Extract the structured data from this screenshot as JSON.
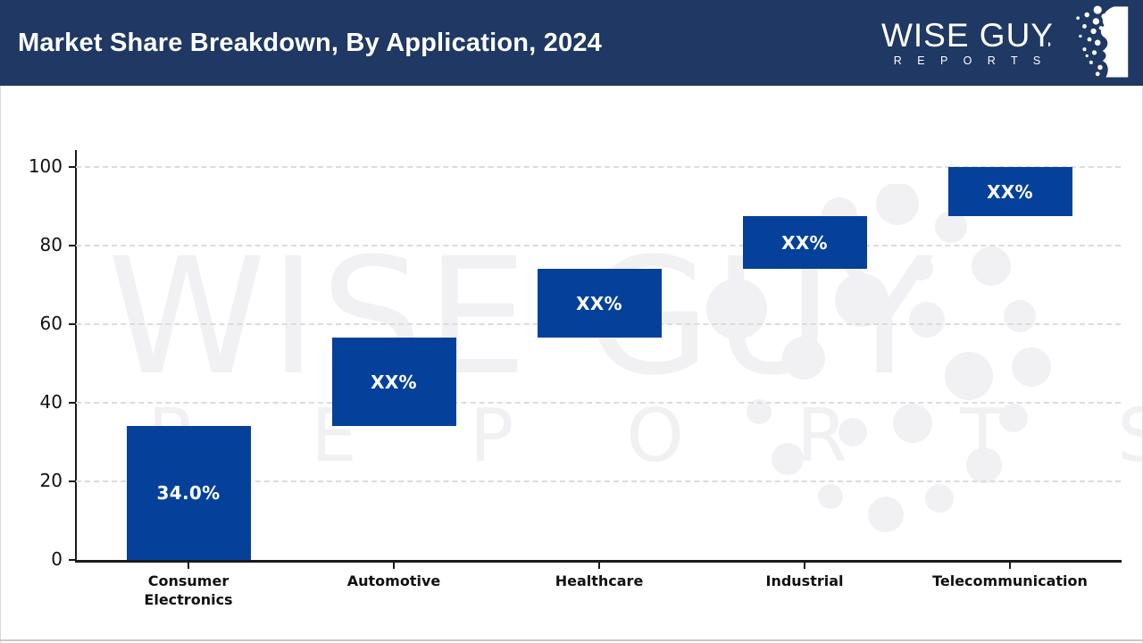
{
  "header": {
    "title": "Market Share Breakdown, By Application, 2024",
    "logo": {
      "brand_line1": "WISE GUY",
      "brand_line2": "R E P O R T S"
    }
  },
  "watermark": {
    "line1": "WISE GUY",
    "line2": "R E P O R T S"
  },
  "colors": {
    "header_bg": "#1F3864",
    "title_text": "#FFFFFF",
    "bar": "#05419B",
    "bar_label": "#FFFFFF",
    "grid": "#DCDCDC",
    "axis": "#1A1A1A",
    "watermark": "#F1F1F4",
    "bottom_rule": "#C9C9C9"
  },
  "chart_data": {
    "type": "bar",
    "subtype": "waterfall",
    "title": "Market Share Breakdown, By Application, 2024",
    "categories": [
      "Consumer Electronics",
      "Automotive",
      "Healthcare",
      "Industrial",
      "Telecommunication"
    ],
    "bars": [
      {
        "category": "Consumer Electronics",
        "start": 0,
        "end": 34,
        "label": "34.0%"
      },
      {
        "category": "Automotive",
        "start": 34,
        "end": 56.5,
        "label": "XX%"
      },
      {
        "category": "Healthcare",
        "start": 56.5,
        "end": 74,
        "label": "XX%"
      },
      {
        "category": "Industrial",
        "start": 74,
        "end": 87.5,
        "label": "XX%"
      },
      {
        "category": "Telecommunication",
        "start": 87.5,
        "end": 100,
        "label": "XX%"
      }
    ],
    "yticks": [
      0,
      20,
      40,
      60,
      80,
      100
    ],
    "ylim": [
      0,
      100
    ],
    "unit": "%",
    "grid": "horizontal-dashed",
    "legend": "none",
    "xlabel": "",
    "ylabel": ""
  }
}
